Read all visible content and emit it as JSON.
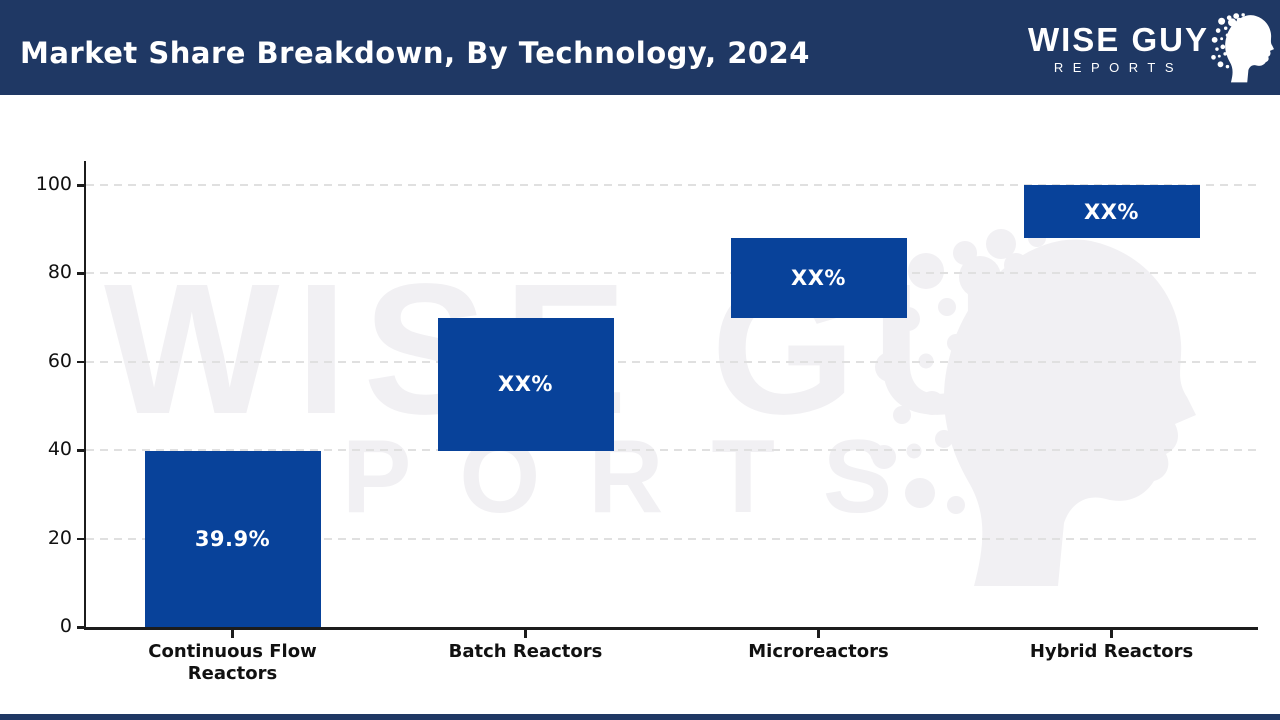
{
  "header": {
    "title": "Market Share Breakdown, By Technology, 2024",
    "bg_color": "#1f3864",
    "logo": {
      "line1": "WISE GUY",
      "line2": "REPORTS"
    }
  },
  "watermark": {
    "line1": "WISE GUY",
    "line2": "PORTS"
  },
  "chart_data": {
    "type": "bar",
    "subtype": "floating-waterfall",
    "title": "Market Share Breakdown, By Technology, 2024",
    "xlabel": "",
    "ylabel": "",
    "categories": [
      "Continuous Flow Reactors",
      "Batch Reactors",
      "Microreactors",
      "Hybrid Reactors"
    ],
    "segments": [
      {
        "category": "Continuous Flow Reactors",
        "start": 0,
        "end": 39.9,
        "label": "39.9%"
      },
      {
        "category": "Batch Reactors",
        "start": 39.9,
        "end": 69.9,
        "label": "XX%"
      },
      {
        "category": "Microreactors",
        "start": 69.9,
        "end": 88,
        "label": "XX%"
      },
      {
        "category": "Hybrid Reactors",
        "start": 88,
        "end": 100,
        "label": "XX%"
      }
    ],
    "yticks": [
      0,
      20,
      40,
      60,
      80,
      100
    ],
    "ylim": [
      0,
      105
    ],
    "grid": "horizontal-dashed",
    "legend": "none",
    "bar_color": "#08429a",
    "bar_label_color": "#ffffff",
    "axis_color": "#1c1c1c",
    "gridline_color": "#e0e0e0"
  }
}
